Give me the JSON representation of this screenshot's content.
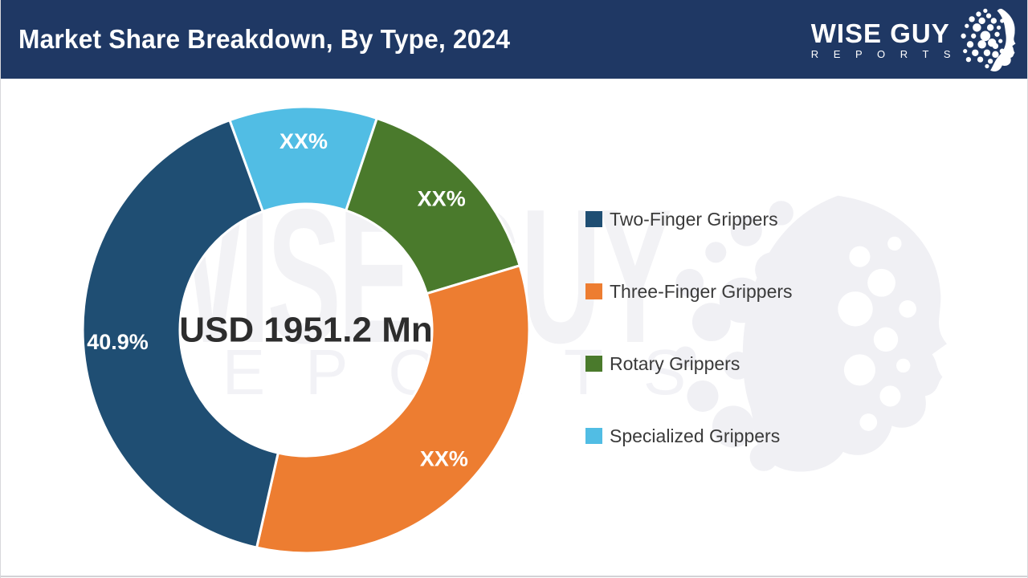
{
  "header": {
    "title": "Market Share Breakdown, By Type, 2024",
    "bg_color": "#1f3864"
  },
  "brand": {
    "name": "WISE GUY",
    "sub": "R E P O R T S"
  },
  "watermark": {
    "line1": "WISE GUY",
    "line2": "REPORTS"
  },
  "chart_data": {
    "type": "pie",
    "subtype": "donut",
    "title": "Market Share Breakdown, By Type, 2024",
    "center_label": "USD 1951.2 Mn",
    "start_angle_deg": -20,
    "legend_position": "right",
    "geometry": {
      "outer_radius": 278,
      "inner_radius": 157,
      "label_radius": 235
    },
    "segments": [
      {
        "name": "Specialized Grippers",
        "display_label": "XX%",
        "value_pct": 10.7,
        "color": "#51bde4"
      },
      {
        "name": "Rotary Grippers",
        "display_label": "XX%",
        "value_pct": 15.2,
        "color": "#4a7a2c"
      },
      {
        "name": "Three-Finger Grippers",
        "display_label": "XX%",
        "value_pct": 33.2,
        "color": "#ed7d31"
      },
      {
        "name": "Two-Finger Grippers",
        "display_label": "40.9%",
        "value_pct": 40.9,
        "color": "#1f4e73"
      }
    ]
  },
  "legend": {
    "items": [
      {
        "label": "Two-Finger Grippers",
        "color": "#1f4e73"
      },
      {
        "label": "Three-Finger Grippers",
        "color": "#ed7d31"
      },
      {
        "label": "Rotary Grippers",
        "color": "#4a7a2c"
      },
      {
        "label": "Specialized Grippers",
        "color": "#51bde4"
      }
    ]
  }
}
